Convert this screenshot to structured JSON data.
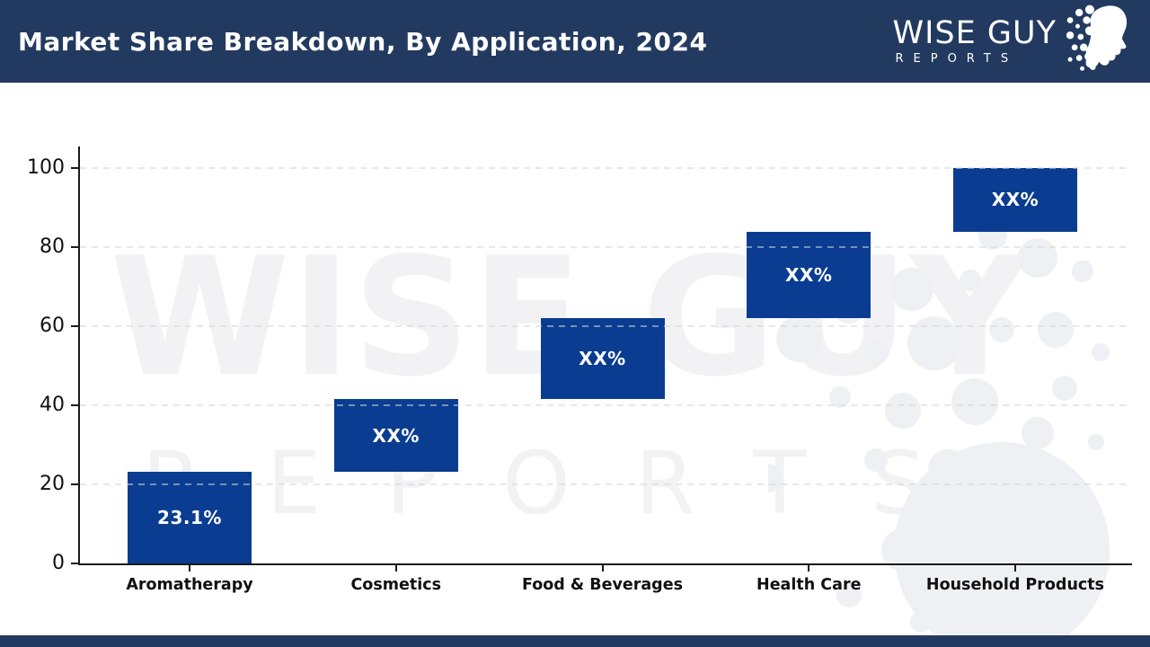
{
  "header": {
    "title": "Market Share Breakdown, By Application, 2024",
    "logo": {
      "line1": "WISE GUY",
      "line2": "REPORTS"
    }
  },
  "watermark": {
    "line1": "WISE GUY",
    "line2": "REPORTS"
  },
  "colors": {
    "header_navy": "#233a60",
    "bar_blue": "#0a3d91",
    "gridline_gray": "#d5d5d5",
    "watermark_gray": "#f2f2f4",
    "axis_black": "#1a1a1a",
    "bar_label_white": "#ffffff"
  },
  "chart_data": {
    "type": "bar",
    "subtype": "waterfall",
    "title": "Market Share Breakdown, By Application, 2024",
    "xlabel": "",
    "ylabel": "",
    "ylim": [
      0,
      100
    ],
    "yticks": [
      0,
      20,
      40,
      60,
      80,
      100
    ],
    "grid": "horizontal-dashed",
    "legend": "none",
    "bar_color": "#0a3d91",
    "categories": [
      "Aromatherapy",
      "Cosmetics",
      "Food & Beverages",
      "Health Care",
      "Household Products"
    ],
    "bars": [
      {
        "category": "Aromatherapy",
        "start": 0,
        "end": 23.1,
        "label": "23.1%"
      },
      {
        "category": "Cosmetics",
        "start": 23.1,
        "end": 41.5,
        "label": "XX%"
      },
      {
        "category": "Food & Beverages",
        "start": 41.5,
        "end": 62.0,
        "label": "XX%"
      },
      {
        "category": "Health Care",
        "start": 62.0,
        "end": 83.9,
        "label": "XX%"
      },
      {
        "category": "Household Products",
        "start": 83.9,
        "end": 100.0,
        "label": "XX%"
      }
    ]
  }
}
